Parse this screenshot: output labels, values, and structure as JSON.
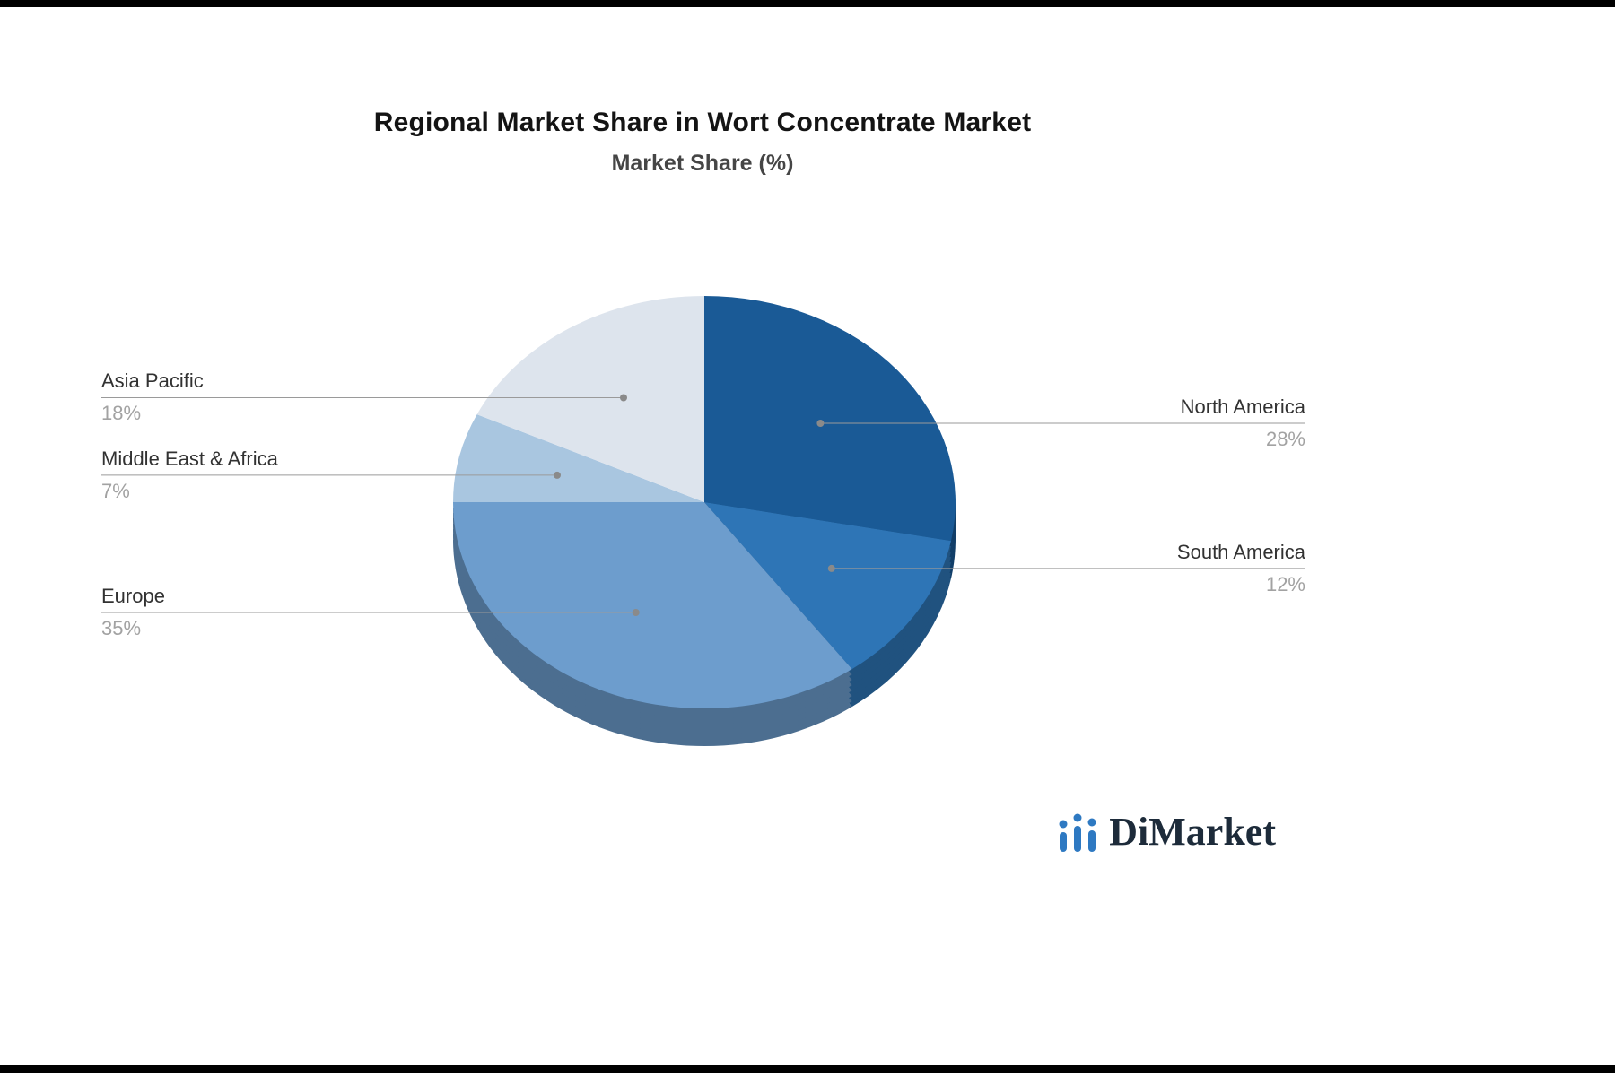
{
  "page": {
    "title": "Regional Market Share in Wort Concentrate Market",
    "subtitle": "Market Share (%)"
  },
  "chart_data": {
    "type": "pie",
    "title": "Regional Market Share in Wort Concentrate Market",
    "subtitle": "Market Share (%)",
    "unit": "%",
    "start_angle_deg": 0,
    "direction": "clockwise",
    "effect_3d": true,
    "legend_position": "none",
    "series": [
      {
        "name": "North America",
        "value": 28,
        "display": "28%",
        "color": "#1a5a96",
        "label_side": "right"
      },
      {
        "name": "South America",
        "value": 12,
        "display": "12%",
        "color": "#2e75b6",
        "label_side": "right"
      },
      {
        "name": "Europe",
        "value": 35,
        "display": "35%",
        "color": "#6d9dcd",
        "label_side": "left"
      },
      {
        "name": "Middle East & Africa",
        "value": 7,
        "display": "7%",
        "color": "#a9c6e0",
        "label_side": "left"
      },
      {
        "name": "Asia Pacific",
        "value": 18,
        "display": "18%",
        "color": "#dde4ed",
        "label_side": "left"
      }
    ],
    "leader_line_color": "#9a9a9a",
    "leader_dot_color": "#8a8a8a"
  },
  "branding": {
    "logo_text": "DiMarket",
    "logo_icon": "bar-chart-icon",
    "logo_icon_color": "#2e79c2",
    "logo_text_color": "#1d2b3a"
  }
}
